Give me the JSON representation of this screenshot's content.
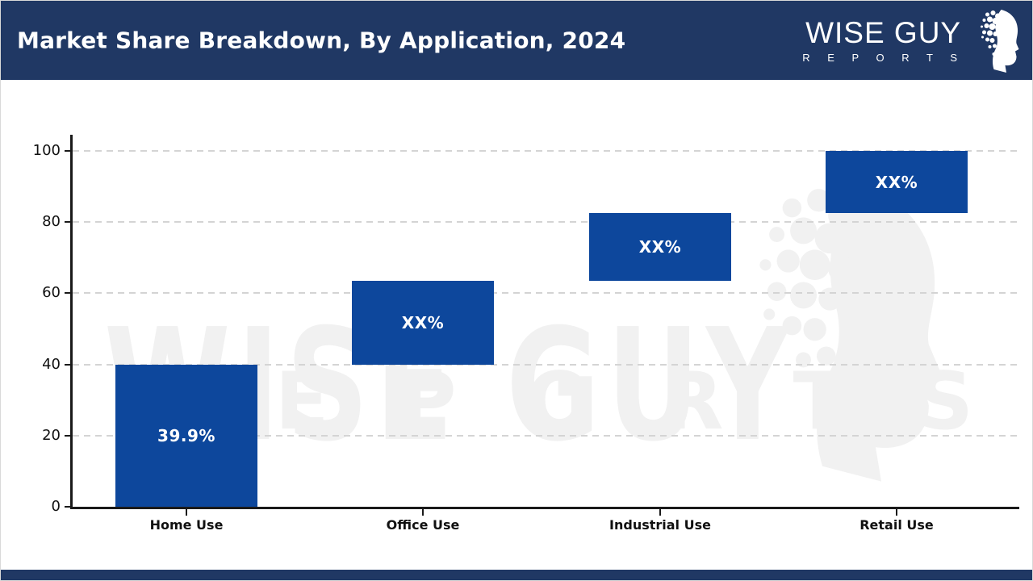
{
  "header": {
    "title": "Market Share Breakdown, By Application, 2024",
    "logo": {
      "word": "WISE GUY",
      "sub": "R E P O R T S"
    }
  },
  "watermark": {
    "line1": "WISE GUY",
    "line2": "R E P O R T S"
  },
  "colors": {
    "header_bg": "#203864",
    "footer_bg": "#203864",
    "bar": "#0d479c",
    "bar_label": "#ffffff",
    "grid": "#d4d4d4",
    "axis": "#1a1a1a",
    "watermark": "#f1f1f1"
  },
  "chart_data": {
    "type": "bar",
    "subtype": "floating-waterfall",
    "title": "Market Share Breakdown, By Application, 2024",
    "categories": [
      "Home Use",
      "Office Use",
      "Industrial Use",
      "Retail Use"
    ],
    "series": [
      {
        "name": "Market Share (%)",
        "segments": [
          {
            "category": "Home Use",
            "start": 0,
            "end": 39.9,
            "label": "39.9%"
          },
          {
            "category": "Office Use",
            "start": 40.0,
            "end": 63.5,
            "label": "XX%"
          },
          {
            "category": "Industrial Use",
            "start": 63.5,
            "end": 82.5,
            "label": "XX%"
          },
          {
            "category": "Retail Use",
            "start": 82.5,
            "end": 100.0,
            "label": "XX%"
          }
        ]
      }
    ],
    "xlabel": "",
    "ylabel": "",
    "ylim": [
      0,
      100
    ],
    "yticks": [
      0,
      20,
      40,
      60,
      80,
      100
    ],
    "grid": "horizontal-dashed",
    "legend": "none",
    "bar_color": "#0d479c",
    "label_color": "#ffffff"
  }
}
